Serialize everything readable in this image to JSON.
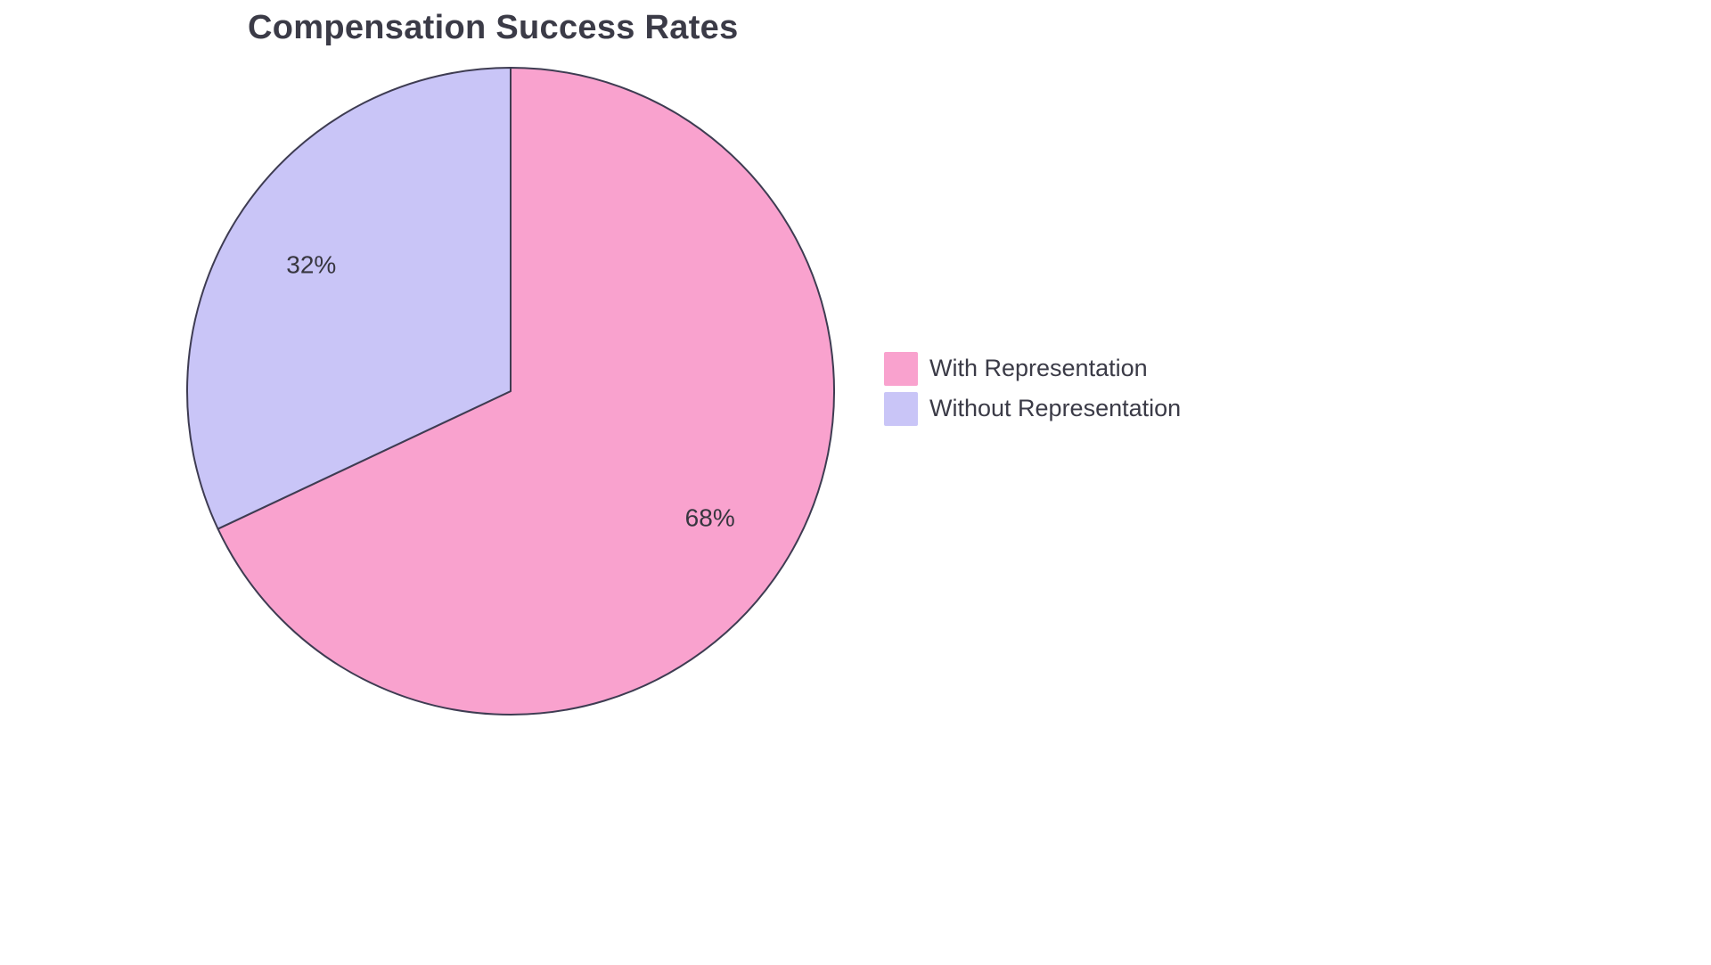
{
  "chart_data": {
    "type": "pie",
    "title": "Compensation Success Rates",
    "series": [
      {
        "label": "With Representation",
        "value": 68,
        "display_label": "68%",
        "color": "#F9A2CE"
      },
      {
        "label": "Without Representation",
        "value": 32,
        "display_label": "32%",
        "color": "#C9C5F7"
      }
    ],
    "start_angle": "top",
    "direction": "clockwise",
    "legend_position": "right",
    "grid": false,
    "stroke_color": "#3E3C52",
    "stroke_width": 2
  }
}
